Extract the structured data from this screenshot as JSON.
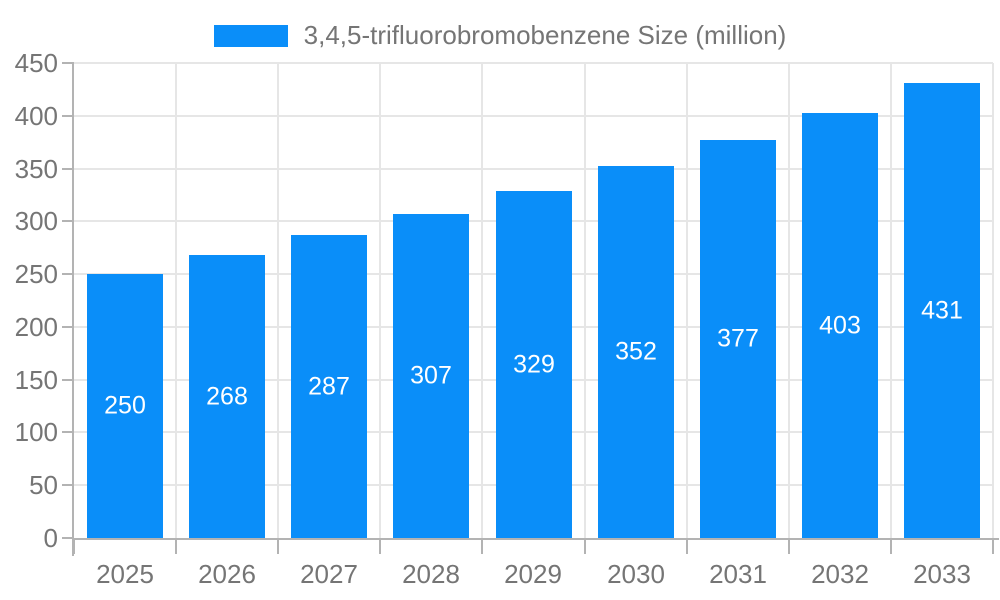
{
  "chart_data": {
    "type": "bar",
    "title": "3,4,5-trifluorobromobenzene Size (million)",
    "series_name": "3,4,5-trifluorobromobenzene Size (million)",
    "legend_entries": [
      "3,4,5-trifluorobromobenzene Size (million)"
    ],
    "legend_position": "top",
    "categories": [
      "2025",
      "2026",
      "2027",
      "2028",
      "2029",
      "2030",
      "2031",
      "2032",
      "2033"
    ],
    "values": [
      250,
      268,
      287,
      307,
      329,
      352,
      377,
      403,
      431
    ],
    "bar_labels": [
      "250",
      "268",
      "287",
      "307",
      "329",
      "352",
      "377",
      "403",
      "431"
    ],
    "xlabel": "",
    "ylabel": "",
    "ylim": [
      0,
      450
    ],
    "ytick_step": 50,
    "ytick_labels": [
      "0",
      "50",
      "100",
      "150",
      "200",
      "250",
      "300",
      "350",
      "400",
      "450"
    ],
    "grid": true,
    "colors": {
      "bar": "#0a8ef9",
      "axis": "#b3b3b3",
      "grid": "#e6e6e6",
      "text": "#757575",
      "bar_label": "#ffffff",
      "background": "#ffffff"
    }
  }
}
